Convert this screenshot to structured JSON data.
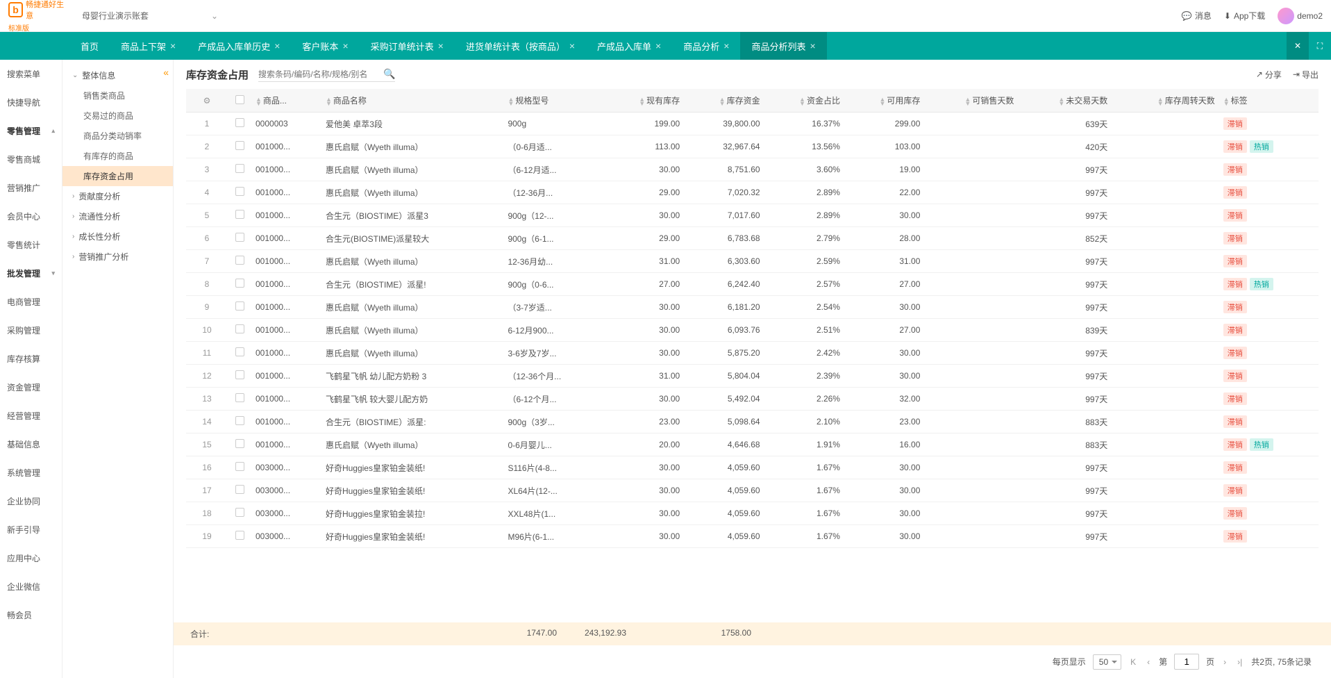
{
  "header": {
    "logo_letter": "b",
    "logo_text": "畅捷通好生意",
    "logo_sub": "标准版",
    "account": "母婴行业演示账套",
    "message_label": "消息",
    "download_label": "App下载",
    "user_name": "demo2"
  },
  "tabs": [
    {
      "label": "首页",
      "closable": false
    },
    {
      "label": "商品上下架",
      "closable": true
    },
    {
      "label": "产成品入库单历史",
      "closable": true
    },
    {
      "label": "客户账本",
      "closable": true
    },
    {
      "label": "采购订单统计表",
      "closable": true
    },
    {
      "label": "进货单统计表（按商品）",
      "closable": true
    },
    {
      "label": "产成品入库单",
      "closable": true
    },
    {
      "label": "商品分析",
      "closable": true
    },
    {
      "label": "商品分析列表",
      "closable": true,
      "active": true
    }
  ],
  "left_sidebar": [
    {
      "label": "搜索菜单"
    },
    {
      "label": "快捷导航"
    },
    {
      "label": "零售管理",
      "arrow": "▴",
      "bold": true
    },
    {
      "label": "零售商城"
    },
    {
      "label": "营销推广"
    },
    {
      "label": "会员中心"
    },
    {
      "label": "零售统计"
    },
    {
      "label": "批发管理",
      "arrow": "▾",
      "bold": true
    },
    {
      "label": "电商管理"
    },
    {
      "label": "采购管理"
    },
    {
      "label": "库存核算"
    },
    {
      "label": "资金管理"
    },
    {
      "label": "经营管理"
    },
    {
      "label": "基础信息"
    },
    {
      "label": "系统管理"
    },
    {
      "label": "企业协同"
    },
    {
      "label": "新手引导"
    },
    {
      "label": "应用中心"
    },
    {
      "label": "企业微信"
    },
    {
      "label": "畅会员"
    }
  ],
  "sub_sidebar": {
    "groups": [
      {
        "label": "整体信息",
        "expanded": true,
        "children": [
          {
            "label": "销售类商品"
          },
          {
            "label": "交易过的商品"
          },
          {
            "label": "商品分类动销率"
          },
          {
            "label": "有库存的商品"
          },
          {
            "label": "库存资金占用",
            "active": true
          }
        ]
      },
      {
        "label": "贡献度分析",
        "expanded": false
      },
      {
        "label": "流通性分析",
        "expanded": false
      },
      {
        "label": "成长性分析",
        "expanded": false
      },
      {
        "label": "营销推广分析",
        "expanded": false
      }
    ]
  },
  "content": {
    "title": "库存资金占用",
    "search_placeholder": "搜索条码/编码/名称/规格/别名",
    "share_label": "分享",
    "export_label": "导出"
  },
  "columns": [
    "",
    "",
    "商品...",
    "商品名称",
    "规格型号",
    "现有库存",
    "库存资金",
    "资金占比",
    "可用库存",
    "可销售天数",
    "未交易天数",
    "库存周转天数",
    "标签"
  ],
  "rows": [
    {
      "n": 1,
      "code": "0000003",
      "name": "爱他美 卓萃3段",
      "spec": "900g",
      "stock": "199.00",
      "fund": "39,800.00",
      "pct": "16.37%",
      "avail": "299.00",
      "days": "",
      "notrade": "639天",
      "turn": "",
      "tags": [
        "滞销"
      ]
    },
    {
      "n": 2,
      "code": "001000...",
      "name": "惠氏启赋（Wyeth illuma）",
      "spec": "（0-6月适...",
      "stock": "113.00",
      "fund": "32,967.64",
      "pct": "13.56%",
      "avail": "103.00",
      "days": "",
      "notrade": "420天",
      "turn": "",
      "tags": [
        "滞销",
        "热销"
      ]
    },
    {
      "n": 3,
      "code": "001000...",
      "name": "惠氏启赋（Wyeth illuma）",
      "spec": "（6-12月适...",
      "stock": "30.00",
      "fund": "8,751.60",
      "pct": "3.60%",
      "avail": "19.00",
      "days": "",
      "notrade": "997天",
      "turn": "",
      "tags": [
        "滞销"
      ]
    },
    {
      "n": 4,
      "code": "001000...",
      "name": "惠氏启赋（Wyeth illuma）",
      "spec": "（12-36月...",
      "stock": "29.00",
      "fund": "7,020.32",
      "pct": "2.89%",
      "avail": "22.00",
      "days": "",
      "notrade": "997天",
      "turn": "",
      "tags": [
        "滞销"
      ]
    },
    {
      "n": 5,
      "code": "001000...",
      "name": "合生元（BIOSTIME）派星3",
      "spec": "900g（12-...",
      "stock": "30.00",
      "fund": "7,017.60",
      "pct": "2.89%",
      "avail": "30.00",
      "days": "",
      "notrade": "997天",
      "turn": "",
      "tags": [
        "滞销"
      ]
    },
    {
      "n": 6,
      "code": "001000...",
      "name": "合生元(BIOSTIME)派星较大",
      "spec": "900g（6-1...",
      "stock": "29.00",
      "fund": "6,783.68",
      "pct": "2.79%",
      "avail": "28.00",
      "days": "",
      "notrade": "852天",
      "turn": "",
      "tags": [
        "滞销"
      ]
    },
    {
      "n": 7,
      "code": "001000...",
      "name": "惠氏启赋（Wyeth illuma）",
      "spec": "12-36月幼...",
      "stock": "31.00",
      "fund": "6,303.60",
      "pct": "2.59%",
      "avail": "31.00",
      "days": "",
      "notrade": "997天",
      "turn": "",
      "tags": [
        "滞销"
      ]
    },
    {
      "n": 8,
      "code": "001000...",
      "name": "合生元（BIOSTIME）派星!",
      "spec": "900g（0-6...",
      "stock": "27.00",
      "fund": "6,242.40",
      "pct": "2.57%",
      "avail": "27.00",
      "days": "",
      "notrade": "997天",
      "turn": "",
      "tags": [
        "滞销",
        "热销"
      ]
    },
    {
      "n": 9,
      "code": "001000...",
      "name": "惠氏启赋（Wyeth illuma）",
      "spec": "（3-7岁适...",
      "stock": "30.00",
      "fund": "6,181.20",
      "pct": "2.54%",
      "avail": "30.00",
      "days": "",
      "notrade": "997天",
      "turn": "",
      "tags": [
        "滞销"
      ]
    },
    {
      "n": 10,
      "code": "001000...",
      "name": "惠氏启赋（Wyeth illuma）",
      "spec": "6-12月900...",
      "stock": "30.00",
      "fund": "6,093.76",
      "pct": "2.51%",
      "avail": "27.00",
      "days": "",
      "notrade": "839天",
      "turn": "",
      "tags": [
        "滞销"
      ]
    },
    {
      "n": 11,
      "code": "001000...",
      "name": "惠氏启赋（Wyeth illuma）",
      "spec": "3-6岁及7岁...",
      "stock": "30.00",
      "fund": "5,875.20",
      "pct": "2.42%",
      "avail": "30.00",
      "days": "",
      "notrade": "997天",
      "turn": "",
      "tags": [
        "滞销"
      ]
    },
    {
      "n": 12,
      "code": "001000...",
      "name": "飞鹤星飞帆 幼儿配方奶粉 3",
      "spec": "（12-36个月...",
      "stock": "31.00",
      "fund": "5,804.04",
      "pct": "2.39%",
      "avail": "30.00",
      "days": "",
      "notrade": "997天",
      "turn": "",
      "tags": [
        "滞销"
      ]
    },
    {
      "n": 13,
      "code": "001000...",
      "name": "飞鹤星飞帆 较大婴儿配方奶",
      "spec": "（6-12个月...",
      "stock": "30.00",
      "fund": "5,492.04",
      "pct": "2.26%",
      "avail": "32.00",
      "days": "",
      "notrade": "997天",
      "turn": "",
      "tags": [
        "滞销"
      ]
    },
    {
      "n": 14,
      "code": "001000...",
      "name": "合生元（BIOSTIME）派星:",
      "spec": "900g（3岁...",
      "stock": "23.00",
      "fund": "5,098.64",
      "pct": "2.10%",
      "avail": "23.00",
      "days": "",
      "notrade": "883天",
      "turn": "",
      "tags": [
        "滞销"
      ]
    },
    {
      "n": 15,
      "code": "001000...",
      "name": "惠氏启赋（Wyeth illuma）",
      "spec": "0-6月婴儿...",
      "stock": "20.00",
      "fund": "4,646.68",
      "pct": "1.91%",
      "avail": "16.00",
      "days": "",
      "notrade": "883天",
      "turn": "",
      "tags": [
        "滞销",
        "热销"
      ]
    },
    {
      "n": 16,
      "code": "003000...",
      "name": "好奇Huggies皇家铂金装纸!",
      "spec": "S116片(4-8...",
      "stock": "30.00",
      "fund": "4,059.60",
      "pct": "1.67%",
      "avail": "30.00",
      "days": "",
      "notrade": "997天",
      "turn": "",
      "tags": [
        "滞销"
      ]
    },
    {
      "n": 17,
      "code": "003000...",
      "name": "好奇Huggies皇家铂金装纸!",
      "spec": "XL64片(12-...",
      "stock": "30.00",
      "fund": "4,059.60",
      "pct": "1.67%",
      "avail": "30.00",
      "days": "",
      "notrade": "997天",
      "turn": "",
      "tags": [
        "滞销"
      ]
    },
    {
      "n": 18,
      "code": "003000...",
      "name": "好奇Huggies皇家铂金装拉!",
      "spec": "XXL48片(1...",
      "stock": "30.00",
      "fund": "4,059.60",
      "pct": "1.67%",
      "avail": "30.00",
      "days": "",
      "notrade": "997天",
      "turn": "",
      "tags": [
        "滞销"
      ]
    },
    {
      "n": 19,
      "code": "003000...",
      "name": "好奇Huggies皇家铂金装纸!",
      "spec": "M96片(6-1...",
      "stock": "30.00",
      "fund": "4,059.60",
      "pct": "1.67%",
      "avail": "30.00",
      "days": "",
      "notrade": "997天",
      "turn": "",
      "tags": [
        "滞销"
      ]
    }
  ],
  "footer": {
    "label": "合计:",
    "stock": "1747.00",
    "fund": "243,192.93",
    "avail": "1758.00"
  },
  "pagination": {
    "per_label": "每页显示",
    "per_value": "50",
    "first": "K",
    "prev": "‹",
    "page_label_pre": "第",
    "page": "1",
    "page_label_post": "页",
    "next": "›",
    "last": "›|",
    "summary": "共2页, 75条记录"
  }
}
